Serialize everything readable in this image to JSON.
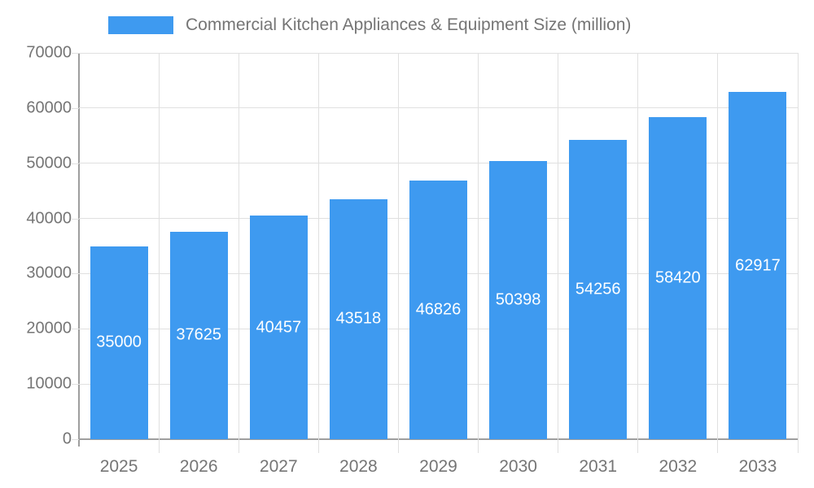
{
  "legend": {
    "label": "Commercial Kitchen Appliances & Equipment Size (million)"
  },
  "chart_data": {
    "type": "bar",
    "title": "Commercial Kitchen Appliances & Equipment Size (million)",
    "categories": [
      "2025",
      "2026",
      "2027",
      "2028",
      "2029",
      "2030",
      "2031",
      "2032",
      "2033"
    ],
    "values": [
      35000,
      37625,
      40457,
      43518,
      46826,
      50398,
      54256,
      58420,
      62917
    ],
    "xlabel": "",
    "ylabel": "",
    "ylim": [
      0,
      70000
    ],
    "yticks": [
      0,
      10000,
      20000,
      30000,
      40000,
      50000,
      60000,
      70000
    ],
    "grid": true,
    "legend_position": "top",
    "value_labels": "centered-inside-bars",
    "colors": {
      "bar": "#3e9af0",
      "grid": "#e0e0e0",
      "axis": "#9e9e9e",
      "tick_text": "#757575",
      "value_label": "#ffffff",
      "background": "#ffffff"
    }
  }
}
